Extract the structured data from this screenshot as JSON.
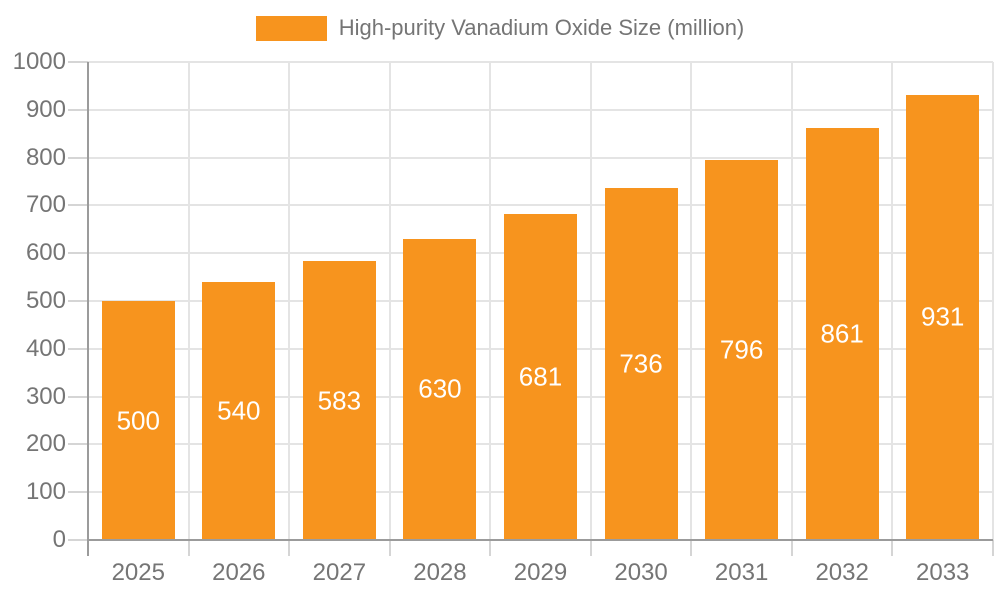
{
  "legend": {
    "label": "High-purity Vanadium Oxide Size (million)"
  },
  "chart_data": {
    "type": "bar",
    "title": "High-purity Vanadium Oxide Size (million)",
    "series_name": "High-purity Vanadium Oxide Size (million)",
    "categories": [
      "2025",
      "2026",
      "2027",
      "2028",
      "2029",
      "2030",
      "2031",
      "2032",
      "2033"
    ],
    "values": [
      500,
      540,
      583,
      630,
      681,
      736,
      796,
      861,
      931
    ],
    "xlabel": "",
    "ylabel": "",
    "ylim": [
      0,
      1000
    ],
    "ytick_step": 100,
    "ytick_labels": [
      "0",
      "100",
      "200",
      "300",
      "400",
      "500",
      "600",
      "700",
      "800",
      "900",
      "1000"
    ],
    "grid": true,
    "legend_position": "top",
    "bar_value_labels": true,
    "colors": {
      "bar": "#F7941E",
      "bar_label": "#FFFFFF",
      "axis_text": "#757575",
      "grid_line": "#E4E4E4",
      "tick_line": "#D5D5D5",
      "axis_line": "#9B9B9B",
      "background": "#FFFFFF"
    }
  }
}
